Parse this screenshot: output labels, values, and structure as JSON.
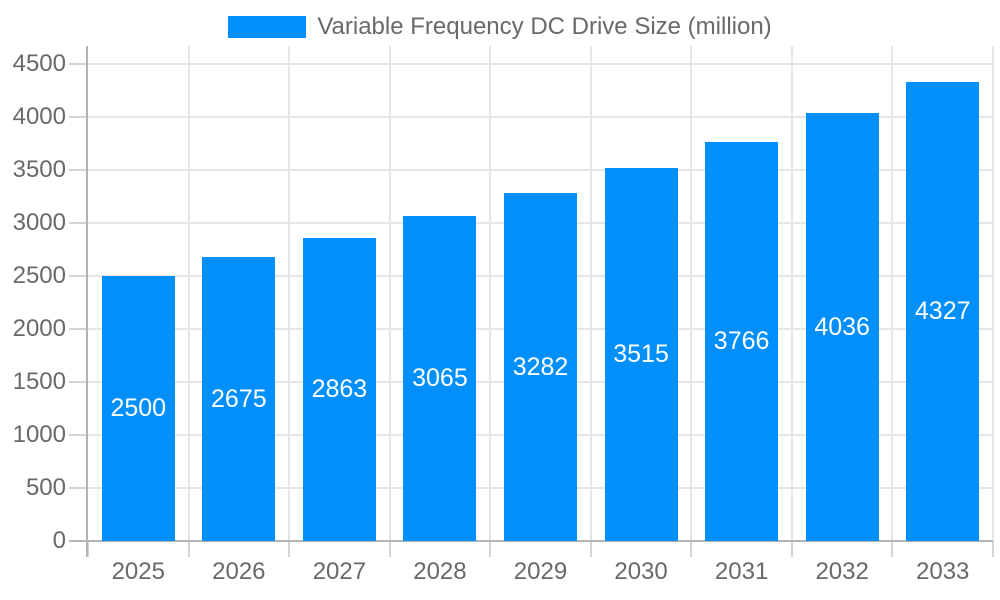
{
  "legend": {
    "label": "Variable Frequency DC Drive Size (million)",
    "swatch_color": "#008ffb"
  },
  "chart_data": {
    "type": "bar",
    "title": "Variable Frequency DC Drive Size (million)",
    "categories": [
      "2025",
      "2026",
      "2027",
      "2028",
      "2029",
      "2030",
      "2031",
      "2032",
      "2033"
    ],
    "series": [
      {
        "name": "Variable Frequency DC Drive Size (million)",
        "values": [
          2500,
          2675,
          2863,
          3065,
          3282,
          3515,
          3766,
          4036,
          4327
        ]
      }
    ],
    "value_labels_shown": true,
    "xlabel": "",
    "ylabel": "",
    "ylim": [
      0,
      4500
    ],
    "yticks": [
      0,
      500,
      1000,
      1500,
      2000,
      2500,
      3000,
      3500,
      4000,
      4500
    ],
    "grid": true,
    "legend_position": "top",
    "colors": {
      "bar": "#008ffb",
      "value_label": "#ffffff",
      "axis_text": "#696969",
      "gridline": "#e6e6e6",
      "axis_line": "#b4b4b4",
      "tick_mark": "#d4d4d4",
      "background": "#ffffff"
    }
  }
}
